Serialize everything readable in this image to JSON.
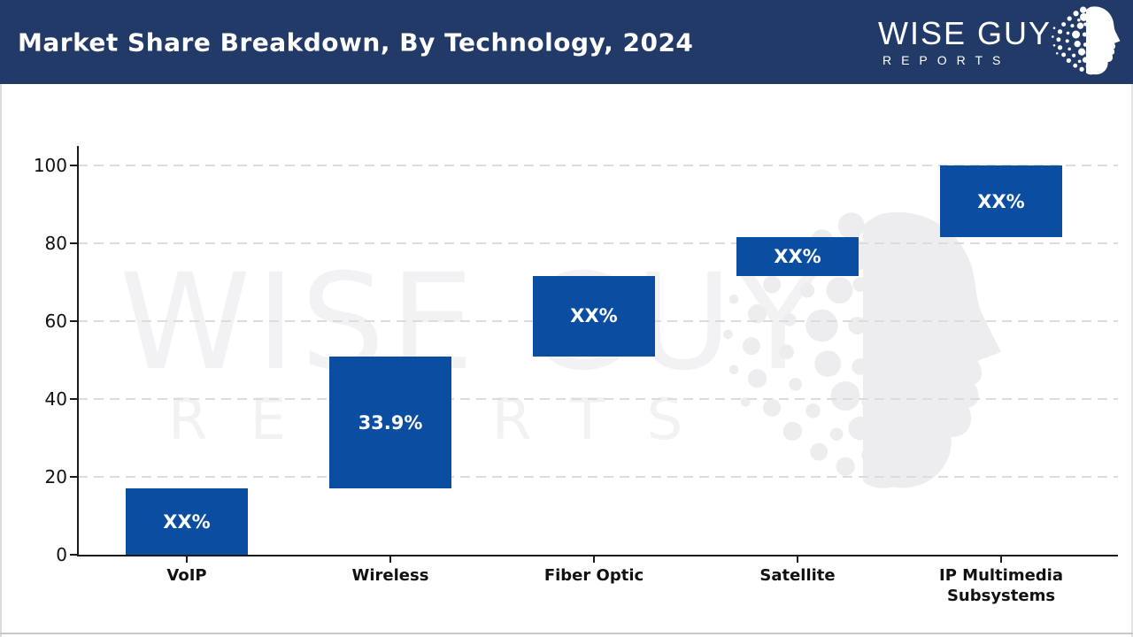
{
  "header": {
    "title": "Market Share Breakdown, By Technology, 2024",
    "background_color": "#213a67",
    "text_color": "#ffffff",
    "brand": {
      "line1": "WISE GUY",
      "line2": "REPORTS",
      "head_icon": "dotted-head-profile-icon"
    }
  },
  "watermark": {
    "line1": "WISE GUY",
    "line2": "REPORTS",
    "head_icon": "dotted-head-profile-watermark"
  },
  "chart_data": {
    "type": "bar",
    "subtype": "floating-waterfall",
    "title": "Market Share Breakdown, By Technology, 2024",
    "categories": [
      "VoIP",
      "Wireless",
      "Fiber Optic",
      "Satellite",
      "IP Multimedia Subsystems"
    ],
    "segments": [
      {
        "category": "VoIP",
        "base": 0,
        "top": 17,
        "value_label": "XX%"
      },
      {
        "category": "Wireless",
        "base": 17,
        "top": 50.9,
        "value_label": "33.9%"
      },
      {
        "category": "Fiber Optic",
        "base": 51,
        "top": 71.5,
        "value_label": "XX%"
      },
      {
        "category": "Satellite",
        "base": 71.5,
        "top": 81.5,
        "value_label": "XX%"
      },
      {
        "category": "IP Multimedia Subsystems",
        "base": 81.5,
        "top": 100,
        "value_label": "XX%"
      }
    ],
    "ylim": [
      0,
      100
    ],
    "yticks": [
      0,
      20,
      40,
      60,
      80,
      100
    ],
    "xlabel": "",
    "ylabel": "",
    "grid": "horizontal-dashed",
    "legend": "none",
    "bar_color": "#0b4da1",
    "bar_label_color": "#ffffff",
    "axis_color": "#1a1a1a",
    "gridline_color": "#dcdcdc"
  }
}
